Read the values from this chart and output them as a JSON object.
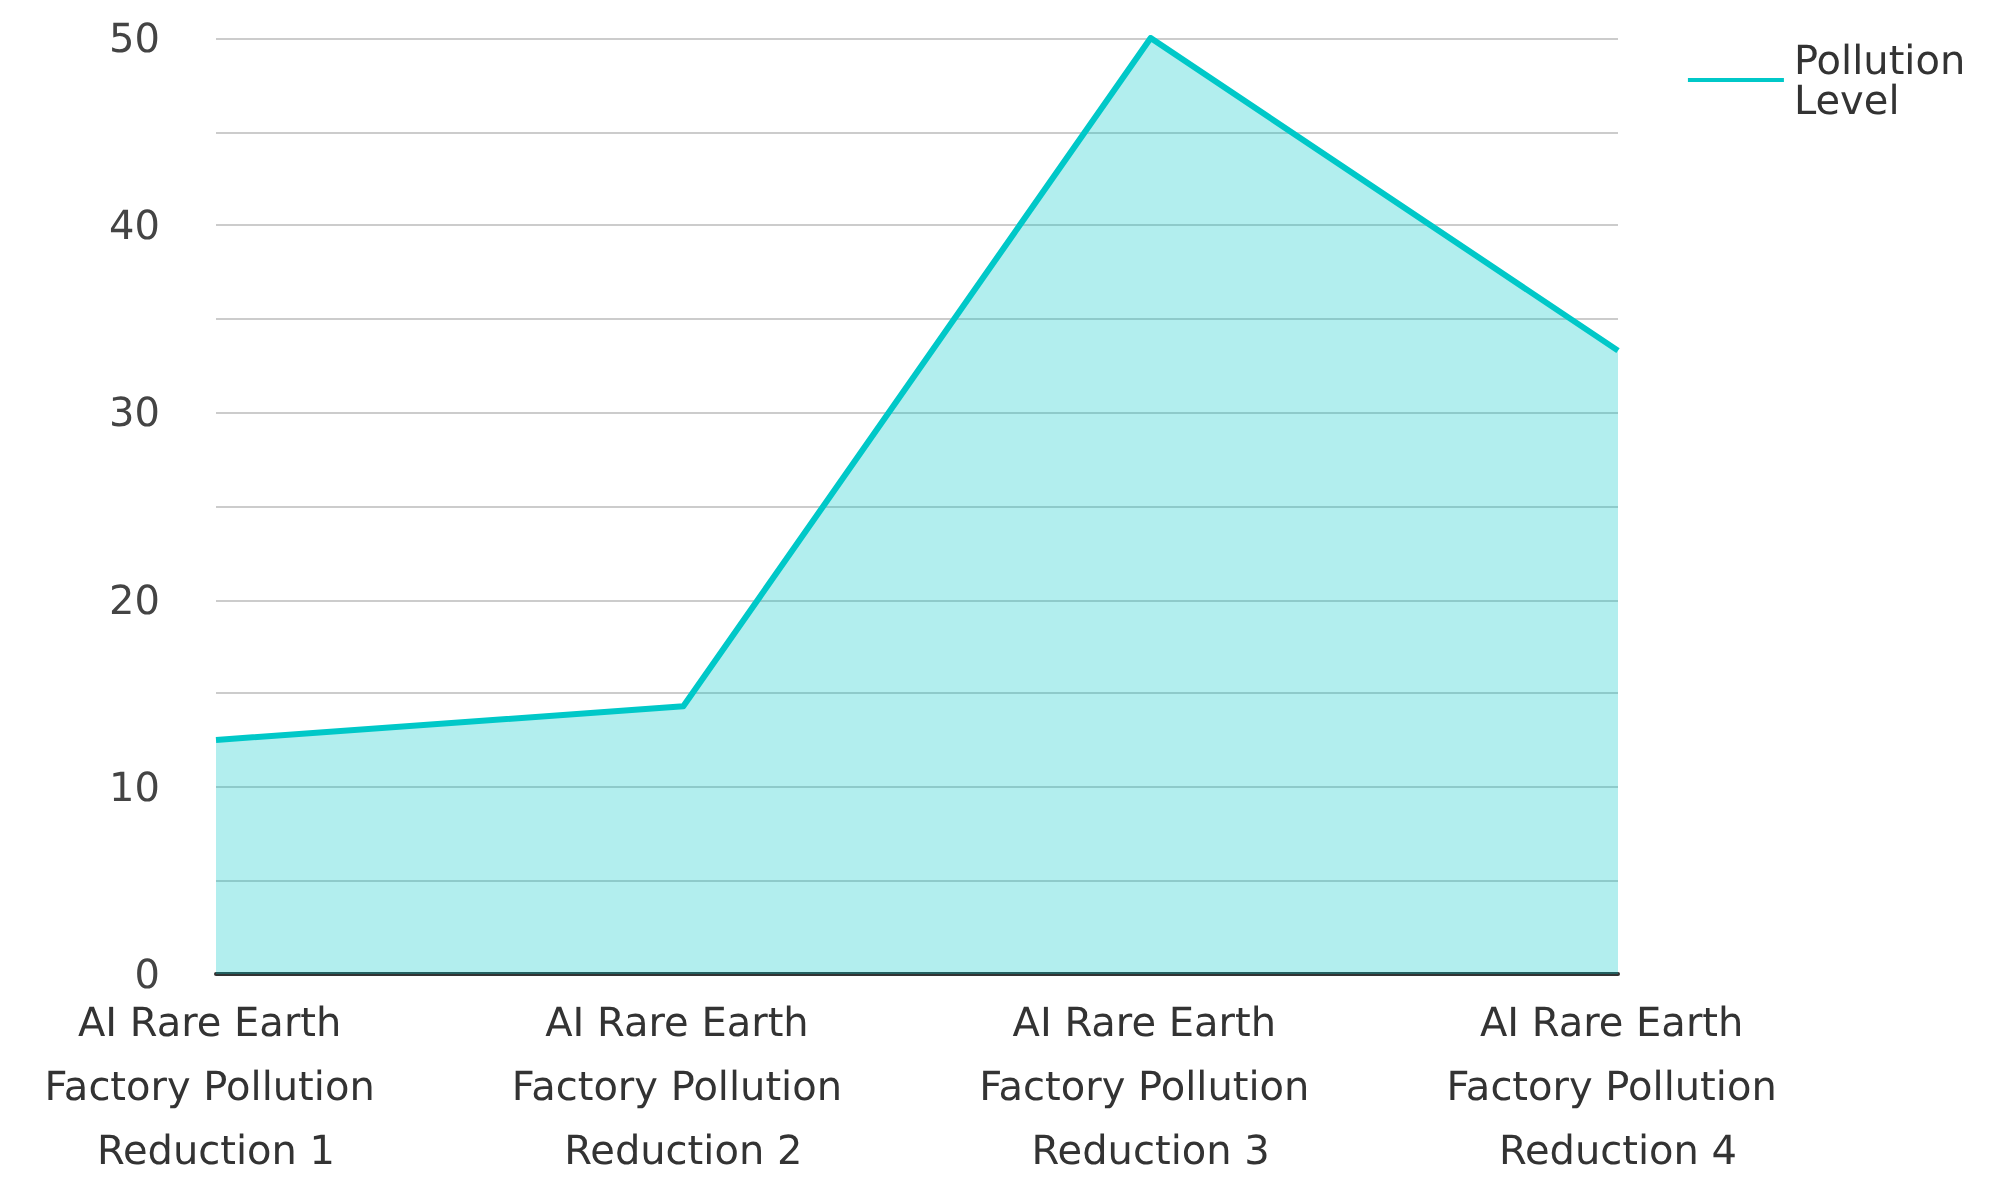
{
  "chart_data": {
    "type": "area",
    "categories": [
      "AI Rare Earth Factory Pollution Reduction 1",
      "AI Rare Earth Factory Pollution Reduction 2",
      "AI Rare Earth Factory Pollution Reduction 3",
      "AI Rare Earth Factory Pollution Reduction 4"
    ],
    "series": [
      {
        "name": "Pollution Level",
        "color": "#00c8c8",
        "values": [
          12.5,
          14.3,
          50,
          33.3
        ]
      }
    ],
    "ylim": [
      0,
      50
    ],
    "yticks": [
      0,
      {
        "value": 5,
        "label": null
      },
      10,
      {
        "value": 15,
        "label": null
      },
      20,
      {
        "value": 25,
        "label": null
      },
      30,
      {
        "value": 35,
        "label": null
      },
      40,
      {
        "value": 45,
        "label": null
      },
      50
    ],
    "grid": "y",
    "legend": "top right",
    "marker": "none"
  }
}
